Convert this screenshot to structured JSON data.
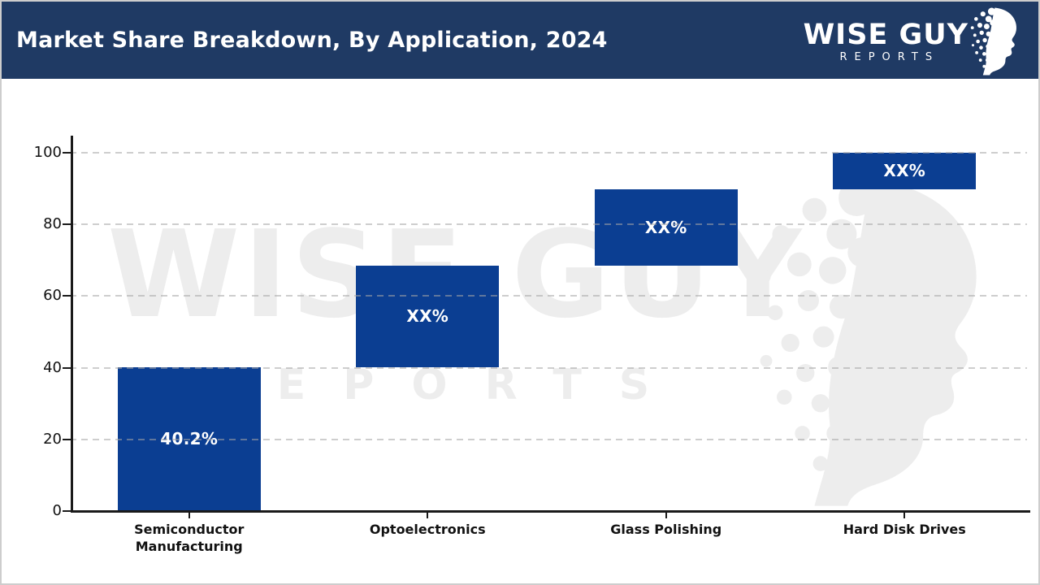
{
  "header": {
    "title": "Market Share Breakdown, By Application, 2024",
    "logo": {
      "line1": "WISE GUY",
      "line2": "REPORTS"
    }
  },
  "watermark": {
    "line1": "WISE GUY",
    "line2": "REPORTS"
  },
  "colors": {
    "header_bg": "#1f3a64",
    "bar": "#0b3e92",
    "axis": "#1a1a1a",
    "grid": "#bbbbbb",
    "watermark": "#ededed",
    "frame_border": "#cdcdcd",
    "bar_label": "#ffffff",
    "title_text": "#ffffff"
  },
  "chart_data": {
    "type": "bar",
    "subtype": "waterfall",
    "title": "Market Share Breakdown, By Application, 2024",
    "categories": [
      "Semiconductor Manufacturing",
      "Optoelectronics",
      "Glass Polishing",
      "Hard Disk Drives"
    ],
    "segments": [
      {
        "category": "Semiconductor Manufacturing",
        "start": 0,
        "end": 40.2,
        "label": "40.2%"
      },
      {
        "category": "Optoelectronics",
        "start": 40.2,
        "end": 68.5,
        "label": "XX%"
      },
      {
        "category": "Glass Polishing",
        "start": 68.5,
        "end": 89.8,
        "label": "XX%"
      },
      {
        "category": "Hard Disk Drives",
        "start": 89.8,
        "end": 100,
        "label": "XX%"
      }
    ],
    "yticks": [
      0,
      20,
      40,
      60,
      80,
      100
    ],
    "ylim": [
      0,
      100
    ],
    "xlabel": "",
    "ylabel": "",
    "grid": "horizontal-dashed",
    "legend": "none",
    "bar_color": "#0b3e92"
  }
}
